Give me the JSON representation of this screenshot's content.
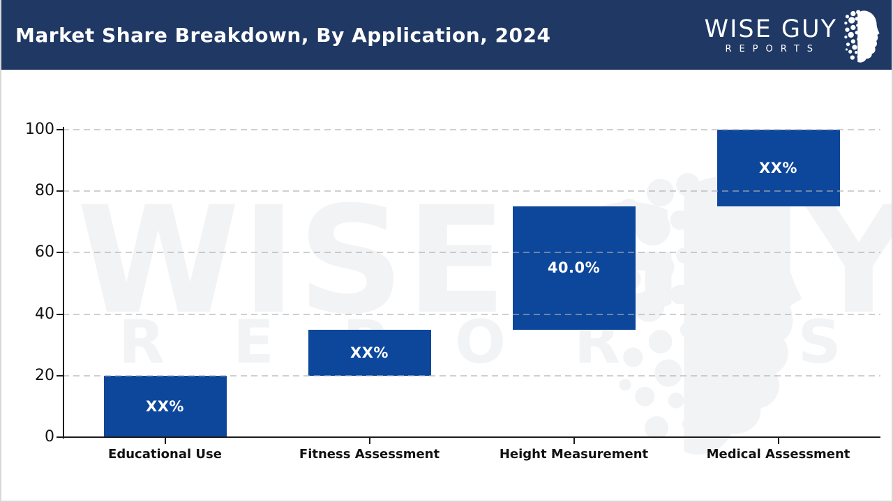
{
  "header": {
    "title": "Market Share Breakdown, By Application, 2024",
    "logo": {
      "line1": "WISE GUY",
      "line2": "REPORTS"
    }
  },
  "watermark": {
    "line1": "WISE GUY",
    "line2": "R E P O R T S"
  },
  "colors": {
    "header_bg": "#1f3864",
    "bar": "#0d479c",
    "bar_label": "#ffffff",
    "axis": "#1a1a1a",
    "grid": "#c9c9c9",
    "watermark": "#f2f3f5"
  },
  "chart_data": {
    "type": "bar",
    "subtype": "waterfall",
    "title": "Market Share Breakdown, By Application, 2024",
    "categories": [
      "Educational Use",
      "Fitness Assessment",
      "Height Measurement",
      "Medical Assessment"
    ],
    "series": [
      {
        "name": "Market Share",
        "segments": [
          {
            "category": "Educational Use",
            "start": 0,
            "end": 20,
            "value": 20,
            "label": "XX%"
          },
          {
            "category": "Fitness Assessment",
            "start": 20,
            "end": 35,
            "value": 15,
            "label": "XX%"
          },
          {
            "category": "Height Measurement",
            "start": 35,
            "end": 75,
            "value": 40,
            "label": "40.0%"
          },
          {
            "category": "Medical Assessment",
            "start": 75,
            "end": 100,
            "value": 25,
            "label": "XX%"
          }
        ]
      }
    ],
    "xlabel": "",
    "ylabel": "",
    "ylim": [
      0,
      100
    ],
    "yticks": [
      0,
      20,
      40,
      60,
      80,
      100
    ],
    "grid": "horizontal-dashed",
    "legend": "none"
  }
}
